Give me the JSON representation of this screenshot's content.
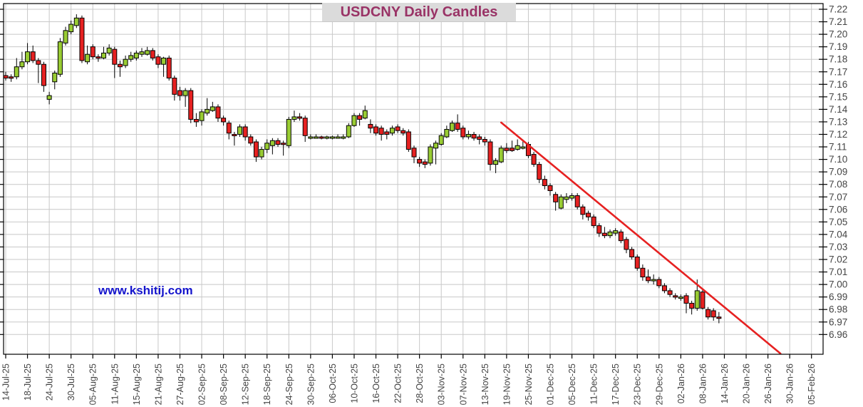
{
  "title": "USDCNY Daily Candles",
  "watermark": "www.kshitij.com",
  "colors": {
    "up_candle": "#99CC33",
    "down_candle": "#E62121",
    "wick": "#000000",
    "grid": "#C8C8C8",
    "axis": "#000000",
    "trendline": "#E62121",
    "title_text": "#993366",
    "title_bg": "#DBDBDB",
    "watermark_text": "#1414CC",
    "tick_label": "#444444"
  },
  "y_axis": {
    "labels": [
      "7.22",
      "7.21",
      "7.20",
      "7.19",
      "7.18",
      "7.17",
      "7.16",
      "7.15",
      "7.14",
      "7.13",
      "7.12",
      "7.11",
      "7.10",
      "7.09",
      "7.08",
      "7.07",
      "7.06",
      "7.05",
      "7.04",
      "7.03",
      "7.02",
      "7.01",
      "7.00",
      "6.99",
      "6.98",
      "6.97",
      "6.96"
    ]
  },
  "x_axis": {
    "labels": [
      "14-Jul-25",
      "18-Jul-25",
      "24-Jul-25",
      "30-Jul-25",
      "05-Aug-25",
      "11-Aug-25",
      "15-Aug-25",
      "21-Aug-25",
      "27-Aug-25",
      "02-Sep-25",
      "08-Sep-25",
      "12-Sep-25",
      "18-Sep-25",
      "24-Sep-25",
      "30-Sep-25",
      "06-Oct-25",
      "10-Oct-25",
      "16-Oct-25",
      "22-Oct-25",
      "28-Oct-25",
      "03-Nov-25",
      "07-Nov-25",
      "13-Nov-25",
      "19-Nov-25",
      "25-Nov-25",
      "01-Dec-25",
      "05-Dec-25",
      "11-Dec-25",
      "17-Dec-25",
      "23-Dec-25",
      "29-Dec-25",
      "02-Jan-26",
      "08-Jan-26",
      "14-Jan-26",
      "20-Jan-26",
      "26-Jan-26",
      "30-Jan-26",
      "05-Feb-26"
    ],
    "candles_per_label": 4
  },
  "chart_data": {
    "type": "candlestick",
    "title": "USDCNY Daily Candles",
    "ylim": [
      6.955,
      7.225
    ],
    "y_tick_step": 0.01,
    "grid": true,
    "dates": [
      "14-Jul-25",
      "15-Jul-25",
      "16-Jul-25",
      "17-Jul-25",
      "18-Jul-25",
      "21-Jul-25",
      "22-Jul-25",
      "23-Jul-25",
      "24-Jul-25",
      "25-Jul-25",
      "28-Jul-25",
      "29-Jul-25",
      "30-Jul-25",
      "31-Jul-25",
      "01-Aug-25",
      "04-Aug-25",
      "05-Aug-25",
      "06-Aug-25",
      "07-Aug-25",
      "08-Aug-25",
      "11-Aug-25",
      "12-Aug-25",
      "13-Aug-25",
      "14-Aug-25",
      "15-Aug-25",
      "18-Aug-25",
      "19-Aug-25",
      "20-Aug-25",
      "21-Aug-25",
      "22-Aug-25",
      "25-Aug-25",
      "26-Aug-25",
      "27-Aug-25",
      "28-Aug-25",
      "29-Aug-25",
      "01-Sep-25",
      "02-Sep-25",
      "03-Sep-25",
      "04-Sep-25",
      "05-Sep-25",
      "08-Sep-25",
      "09-Sep-25",
      "10-Sep-25",
      "11-Sep-25",
      "12-Sep-25",
      "15-Sep-25",
      "16-Sep-25",
      "17-Sep-25",
      "18-Sep-25",
      "19-Sep-25",
      "22-Sep-25",
      "23-Sep-25",
      "24-Sep-25",
      "25-Sep-25",
      "26-Sep-25",
      "29-Sep-25",
      "30-Sep-25",
      "01-Oct-25",
      "02-Oct-25",
      "03-Oct-25",
      "06-Oct-25",
      "07-Oct-25",
      "08-Oct-25",
      "09-Oct-25",
      "10-Oct-25",
      "13-Oct-25",
      "14-Oct-25",
      "15-Oct-25",
      "16-Oct-25",
      "17-Oct-25",
      "20-Oct-25",
      "21-Oct-25",
      "22-Oct-25",
      "23-Oct-25",
      "24-Oct-25",
      "27-Oct-25",
      "28-Oct-25",
      "29-Oct-25",
      "30-Oct-25",
      "31-Oct-25",
      "03-Nov-25",
      "04-Nov-25",
      "05-Nov-25",
      "06-Nov-25",
      "07-Nov-25",
      "10-Nov-25",
      "11-Nov-25",
      "12-Nov-25",
      "13-Nov-25",
      "14-Nov-25",
      "17-Nov-25",
      "18-Nov-25",
      "19-Nov-25",
      "20-Nov-25",
      "21-Nov-25",
      "24-Nov-25",
      "25-Nov-25",
      "26-Nov-25",
      "27-Nov-25",
      "28-Nov-25",
      "01-Dec-25",
      "02-Dec-25",
      "03-Dec-25",
      "04-Dec-25",
      "05-Dec-25",
      "08-Dec-25",
      "09-Dec-25",
      "10-Dec-25",
      "11-Dec-25",
      "12-Dec-25",
      "15-Dec-25",
      "16-Dec-25",
      "17-Dec-25",
      "18-Dec-25",
      "19-Dec-25",
      "22-Dec-25",
      "23-Dec-25",
      "24-Dec-25",
      "25-Dec-25",
      "26-Dec-25",
      "29-Dec-25",
      "30-Dec-25",
      "31-Dec-25",
      "01-Jan-26",
      "02-Jan-26",
      "05-Jan-26",
      "06-Jan-26",
      "07-Jan-26",
      "08-Jan-26",
      "09-Jan-26",
      "12-Jan-26",
      "13-Jan-26"
    ],
    "ohlc": [
      [
        7.167,
        7.17,
        7.163,
        7.165
      ],
      [
        7.166,
        7.168,
        7.162,
        7.165
      ],
      [
        7.166,
        7.181,
        7.164,
        7.174
      ],
      [
        7.174,
        7.186,
        7.172,
        7.178
      ],
      [
        7.178,
        7.193,
        7.176,
        7.186
      ],
      [
        7.186,
        7.191,
        7.177,
        7.179
      ],
      [
        7.179,
        7.181,
        7.161,
        7.176
      ],
      [
        7.176,
        7.178,
        7.154,
        7.159
      ],
      [
        7.148,
        7.154,
        7.144,
        7.151
      ],
      [
        7.162,
        7.171,
        7.156,
        7.169
      ],
      [
        7.168,
        7.197,
        7.166,
        7.194
      ],
      [
        7.193,
        7.206,
        7.191,
        7.203
      ],
      [
        7.202,
        7.211,
        7.2,
        7.208
      ],
      [
        7.207,
        7.216,
        7.205,
        7.213
      ],
      [
        7.213,
        7.215,
        7.177,
        7.179
      ],
      [
        7.178,
        7.191,
        7.176,
        7.184
      ],
      [
        7.19,
        7.192,
        7.18,
        7.182
      ],
      [
        7.182,
        7.184,
        7.178,
        7.181
      ],
      [
        7.181,
        7.19,
        7.18,
        7.185
      ],
      [
        7.185,
        7.192,
        7.183,
        7.189
      ],
      [
        7.188,
        7.19,
        7.165,
        7.176
      ],
      [
        7.176,
        7.179,
        7.166,
        7.174
      ],
      [
        7.175,
        7.183,
        7.173,
        7.18
      ],
      [
        7.18,
        7.186,
        7.178,
        7.183
      ],
      [
        7.181,
        7.187,
        7.179,
        7.185
      ],
      [
        7.184,
        7.189,
        7.182,
        7.186
      ],
      [
        7.184,
        7.19,
        7.183,
        7.187
      ],
      [
        7.187,
        7.189,
        7.179,
        7.181
      ],
      [
        7.182,
        7.184,
        7.173,
        7.176
      ],
      [
        7.176,
        7.182,
        7.166,
        7.181
      ],
      [
        7.181,
        7.183,
        7.163,
        7.165
      ],
      [
        7.165,
        7.167,
        7.147,
        7.152
      ],
      [
        7.155,
        7.158,
        7.147,
        7.151
      ],
      [
        7.151,
        7.157,
        7.142,
        7.155
      ],
      [
        7.155,
        7.157,
        7.129,
        7.132
      ],
      [
        7.132,
        7.137,
        7.126,
        7.13
      ],
      [
        7.131,
        7.14,
        7.127,
        7.138
      ],
      [
        7.137,
        7.149,
        7.135,
        7.14
      ],
      [
        7.139,
        7.146,
        7.138,
        7.142
      ],
      [
        7.142,
        7.144,
        7.13,
        7.133
      ],
      [
        7.133,
        7.135,
        7.127,
        7.13
      ],
      [
        7.129,
        7.131,
        7.116,
        7.121
      ],
      [
        7.12,
        7.122,
        7.111,
        7.119
      ],
      [
        7.12,
        7.128,
        7.118,
        7.126
      ],
      [
        7.126,
        7.128,
        7.115,
        7.118
      ],
      [
        7.118,
        7.12,
        7.111,
        7.113
      ],
      [
        7.114,
        7.116,
        7.098,
        7.102
      ],
      [
        7.102,
        7.11,
        7.1,
        7.108
      ],
      [
        7.108,
        7.116,
        7.105,
        7.113
      ],
      [
        7.111,
        7.117,
        7.104,
        7.115
      ],
      [
        7.115,
        7.117,
        7.11,
        7.112
      ],
      [
        7.113,
        7.115,
        7.103,
        7.112
      ],
      [
        7.111,
        7.134,
        7.109,
        7.132
      ],
      [
        7.132,
        7.139,
        7.13,
        7.134
      ],
      [
        7.134,
        7.137,
        7.131,
        7.133
      ],
      [
        7.133,
        7.135,
        7.114,
        7.119
      ],
      [
        7.118,
        7.12,
        7.116,
        7.118
      ],
      [
        7.118,
        7.12,
        7.117,
        7.118
      ],
      [
        7.118,
        7.119,
        7.116,
        7.117
      ],
      [
        7.117,
        7.119,
        7.116,
        7.118
      ],
      [
        7.118,
        7.119,
        7.116,
        7.118
      ],
      [
        7.118,
        7.12,
        7.117,
        7.118
      ],
      [
        7.118,
        7.12,
        7.116,
        7.118
      ],
      [
        7.118,
        7.129,
        7.117,
        7.127
      ],
      [
        7.127,
        7.137,
        7.126,
        7.135
      ],
      [
        7.135,
        7.137,
        7.127,
        7.132
      ],
      [
        7.133,
        7.143,
        7.132,
        7.139
      ],
      [
        7.128,
        7.132,
        7.121,
        7.125
      ],
      [
        7.126,
        7.128,
        7.119,
        7.121
      ],
      [
        7.125,
        7.127,
        7.115,
        7.12
      ],
      [
        7.122,
        7.124,
        7.116,
        7.12
      ],
      [
        7.121,
        7.127,
        7.119,
        7.125
      ],
      [
        7.126,
        7.128,
        7.121,
        7.123
      ],
      [
        7.123,
        7.125,
        7.119,
        7.121
      ],
      [
        7.122,
        7.124,
        7.106,
        7.108
      ],
      [
        7.109,
        7.111,
        7.097,
        7.102
      ],
      [
        7.1,
        7.102,
        7.094,
        7.097
      ],
      [
        7.098,
        7.1,
        7.093,
        7.096
      ],
      [
        7.097,
        7.112,
        7.095,
        7.11
      ],
      [
        7.109,
        7.115,
        7.096,
        7.113
      ],
      [
        7.112,
        7.121,
        7.111,
        7.119
      ],
      [
        7.118,
        7.127,
        7.117,
        7.124
      ],
      [
        7.123,
        7.131,
        7.122,
        7.129
      ],
      [
        7.129,
        7.136,
        7.122,
        7.124
      ],
      [
        7.125,
        7.127,
        7.116,
        7.118
      ],
      [
        7.118,
        7.123,
        7.116,
        7.12
      ],
      [
        7.12,
        7.122,
        7.115,
        7.117
      ],
      [
        7.118,
        7.12,
        7.112,
        7.116
      ],
      [
        7.116,
        7.118,
        7.111,
        7.114
      ],
      [
        7.114,
        7.116,
        7.091,
        7.096
      ],
      [
        7.096,
        7.101,
        7.089,
        7.099
      ],
      [
        7.098,
        7.111,
        7.097,
        7.109
      ],
      [
        7.109,
        7.113,
        7.105,
        7.107
      ],
      [
        7.109,
        7.115,
        7.106,
        7.107
      ],
      [
        7.108,
        7.116,
        7.107,
        7.111
      ],
      [
        7.11,
        7.115,
        7.108,
        7.11
      ],
      [
        7.112,
        7.114,
        7.101,
        7.103
      ],
      [
        7.104,
        7.106,
        7.094,
        7.096
      ],
      [
        7.096,
        7.098,
        7.081,
        7.084
      ],
      [
        7.084,
        7.087,
        7.076,
        7.079
      ],
      [
        7.079,
        7.081,
        7.071,
        7.075
      ],
      [
        7.072,
        7.074,
        7.059,
        7.066
      ],
      [
        7.061,
        7.072,
        7.06,
        7.07
      ],
      [
        7.068,
        7.073,
        7.065,
        7.07
      ],
      [
        7.069,
        7.073,
        7.067,
        7.071
      ],
      [
        7.071,
        7.073,
        7.06,
        7.062
      ],
      [
        7.062,
        7.064,
        7.052,
        7.056
      ],
      [
        7.057,
        7.059,
        7.051,
        7.054
      ],
      [
        7.054,
        7.056,
        7.045,
        7.047
      ],
      [
        7.047,
        7.049,
        7.038,
        7.041
      ],
      [
        7.041,
        7.046,
        7.037,
        7.039
      ],
      [
        7.039,
        7.044,
        7.037,
        7.042
      ],
      [
        7.041,
        7.045,
        7.039,
        7.043
      ],
      [
        7.042,
        7.044,
        7.033,
        7.035
      ],
      [
        7.036,
        7.038,
        7.025,
        7.028
      ],
      [
        7.028,
        7.03,
        7.02,
        7.022
      ],
      [
        7.022,
        7.024,
        7.011,
        7.013
      ],
      [
        7.013,
        7.016,
        7.003,
        7.006
      ],
      [
        7.006,
        7.012,
        7.001,
        7.003
      ],
      [
        7.003,
        7.008,
        7.0,
        7.004
      ],
      [
        7.004,
        7.006,
        6.997,
        6.999
      ],
      [
        6.999,
        7.001,
        6.993,
        6.995
      ],
      [
        6.995,
        6.997,
        6.99,
        6.992
      ],
      [
        6.991,
        6.993,
        6.988,
        6.99
      ],
      [
        6.99,
        6.992,
        6.987,
        6.99
      ],
      [
        6.991,
        6.993,
        6.977,
        6.985
      ],
      [
        6.985,
        6.987,
        6.976,
        6.981
      ],
      [
        6.981,
        7.004,
        6.979,
        6.995
      ],
      [
        6.994,
        6.996,
        6.98,
        6.981
      ],
      [
        6.98,
        6.982,
        6.972,
        6.974
      ],
      [
        6.979,
        6.981,
        6.971,
        6.974
      ],
      [
        6.974,
        6.978,
        6.969,
        6.973
      ]
    ],
    "trendline": {
      "from_index": 91,
      "from_price": 7.1295,
      "to_index": 142.3,
      "to_price": 6.9448
    },
    "legend_position": "none"
  }
}
